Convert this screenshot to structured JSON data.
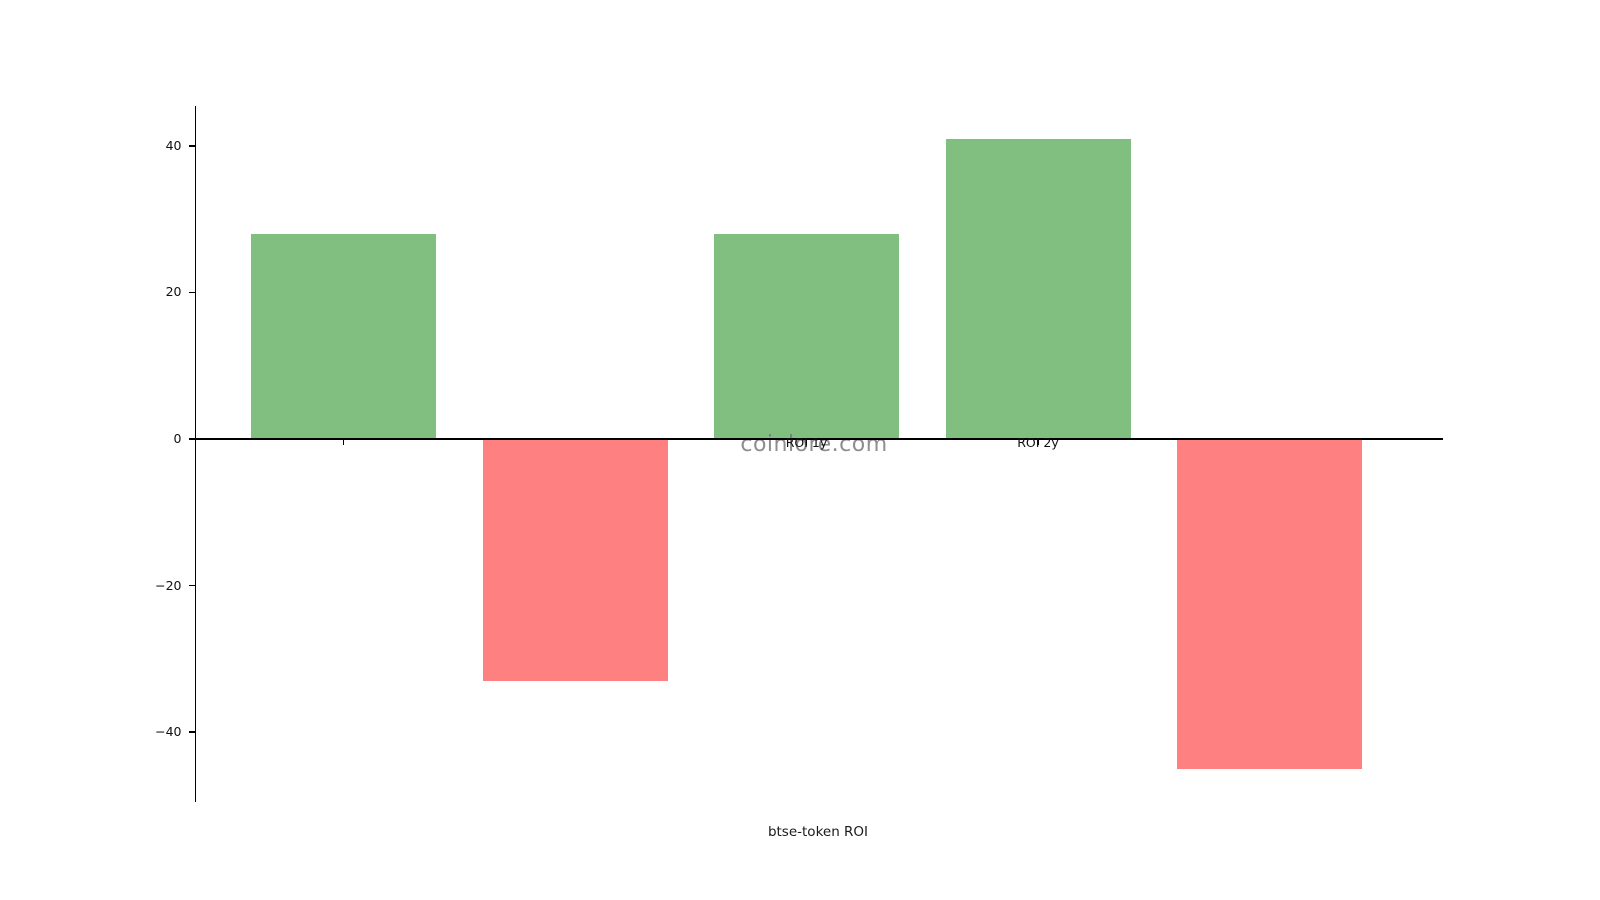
{
  "chart_data": {
    "type": "bar",
    "title": "btse-token ROI",
    "categories": [
      "",
      "",
      "ROI 1y",
      "ROI 2y",
      ""
    ],
    "values": [
      28,
      -33,
      28,
      41,
      -45
    ],
    "bar_colors": [
      "#80bf80",
      "#ff8080",
      "#80bf80",
      "#80bf80",
      "#ff8080"
    ],
    "positive_color": "#80bf80",
    "negative_color": "#ff8080",
    "yticks": [
      40,
      20,
      0,
      -20,
      -40
    ],
    "ytick_labels": [
      "40",
      "20",
      "0",
      "−20",
      "−40"
    ],
    "xtick_visible_indices": [
      0,
      2,
      3
    ],
    "ylim": [
      -49.5,
      45.2
    ],
    "xlabel": "",
    "ylabel": "",
    "grid": false,
    "legend": "none",
    "axis_color": "#000000"
  },
  "watermark": {
    "text": "coinlore.com",
    "color": "#757575"
  }
}
